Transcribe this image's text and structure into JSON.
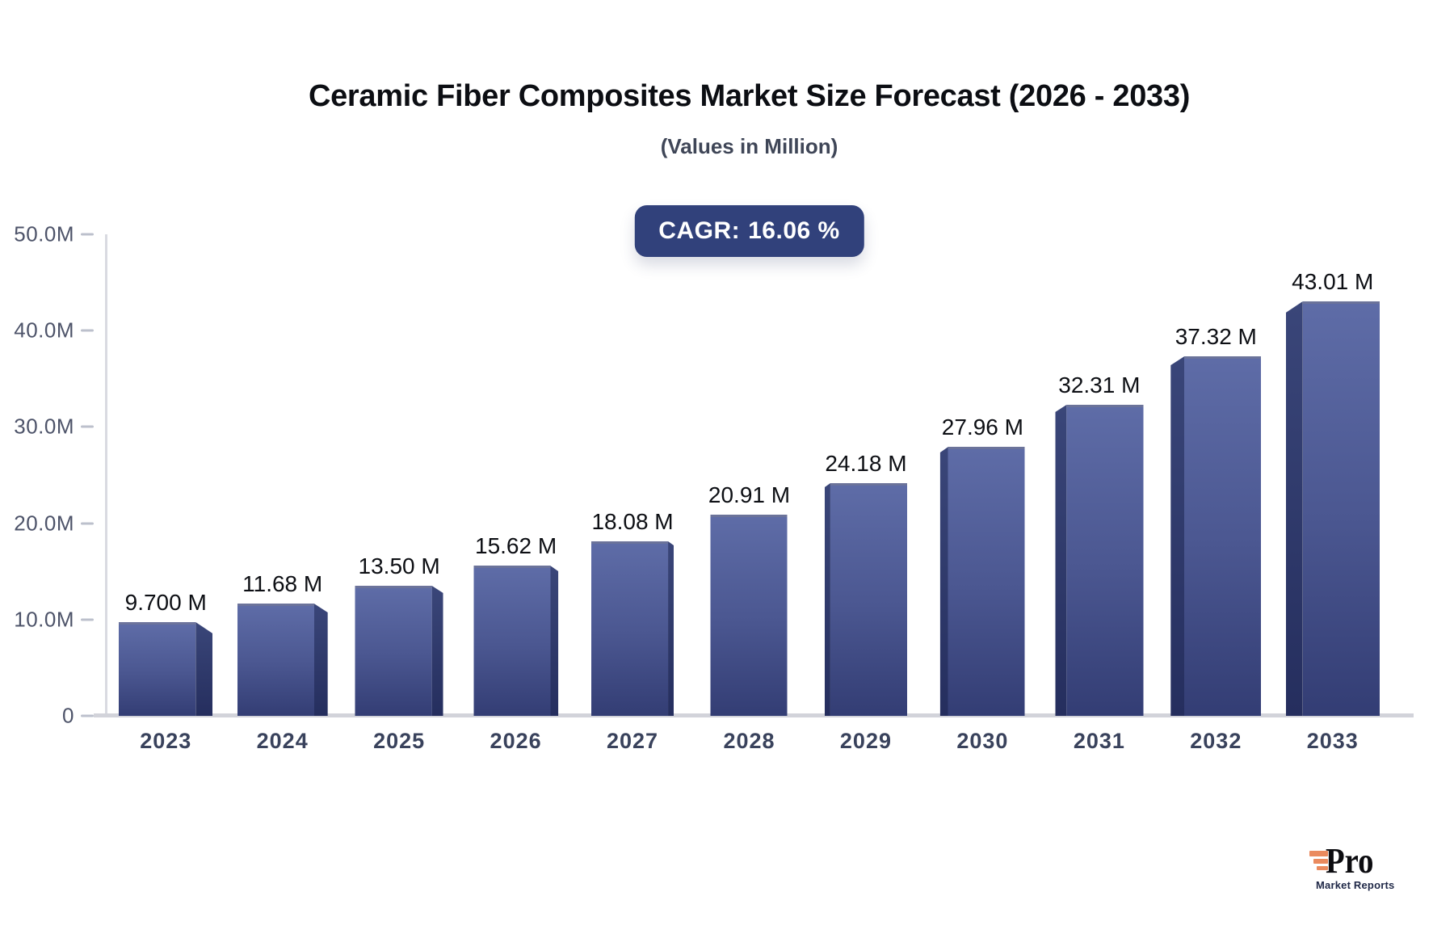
{
  "chart_data": {
    "type": "bar",
    "title": "Ceramic Fiber Composites Market Size Forecast (2026 - 2033)",
    "subtitle": "(Values in Million)",
    "cagr_label": "CAGR:",
    "cagr_value": "16.06 %",
    "categories": [
      "2023",
      "2024",
      "2025",
      "2026",
      "2027",
      "2028",
      "2029",
      "2030",
      "2031",
      "2032",
      "2033"
    ],
    "values": [
      9.7,
      11.68,
      13.5,
      15.62,
      18.08,
      20.91,
      24.18,
      27.96,
      32.31,
      37.32,
      43.01
    ],
    "value_labels": [
      "9.700 M",
      "11.68 M",
      "13.50 M",
      "15.62 M",
      "18.08 M",
      "20.91 M",
      "24.18 M",
      "27.96 M",
      "32.31 M",
      "37.32 M",
      "43.01 M"
    ],
    "xlabel": "",
    "ylabel": "",
    "ylim": [
      0,
      50
    ],
    "yticks": {
      "values": [
        0,
        10,
        20,
        30,
        40,
        50
      ],
      "labels": [
        "0",
        "10.0M",
        "20.0M",
        "30.0M",
        "40.0M",
        "50.0M"
      ]
    },
    "grid": false,
    "legend": "none",
    "bar_style": "3d-perspective-center-vanishing"
  },
  "colors": {
    "bar_front_top": "#5e6ca7",
    "bar_front_bottom": "#333d74",
    "bar_side": "#252e5e",
    "badge_bg": "#31417b",
    "badge_text": "#ffffff",
    "axis_line": "#d9dae1",
    "baseline": "#d2d3da",
    "year_label": "#39425c",
    "value_label": "#0d0f14",
    "logo_accent": "#ea8a5e"
  },
  "logo": {
    "name": "Pro",
    "tagline": "Market Reports"
  }
}
